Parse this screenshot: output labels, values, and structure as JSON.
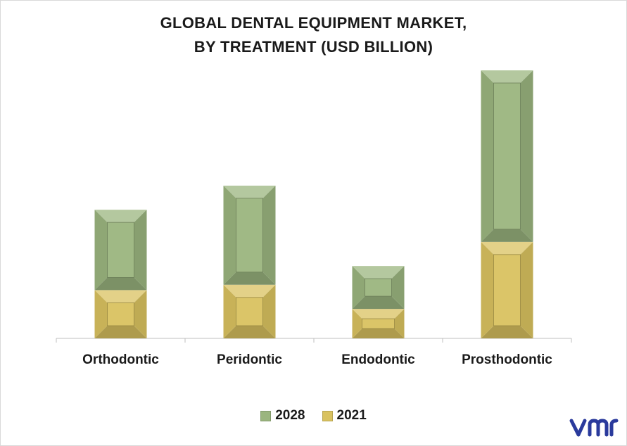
{
  "title_line_1": "GLOBAL DENTAL EQUIPMENT MARKET,",
  "title_line_2": "BY TREATMENT (USD BILLION)",
  "colors": {
    "series_2028": "#9bb57f",
    "series_2021": "#d9c260",
    "axis": "#bfbfbf",
    "logo": "#2a3a9c"
  },
  "legend": {
    "item_2028": "2028",
    "item_2021": "2021",
    "placement": "bottom"
  },
  "chart_data": {
    "type": "bar",
    "stacked": true,
    "categories": [
      "Orthodontic",
      "Peridontic",
      "Endodontic",
      "Prosthodontic"
    ],
    "series": [
      {
        "name": "2021",
        "values": [
          0.9,
          1.0,
          0.55,
          1.8
        ]
      },
      {
        "name": "2028",
        "values": [
          1.5,
          1.85,
          0.8,
          3.2
        ]
      }
    ],
    "title": "GLOBAL DENTAL EQUIPMENT MARKET, BY TREATMENT (USD BILLION)",
    "xlabel": "",
    "ylabel": "",
    "ylim": [
      0,
      5
    ],
    "grid": false,
    "legend_position": "bottom"
  }
}
